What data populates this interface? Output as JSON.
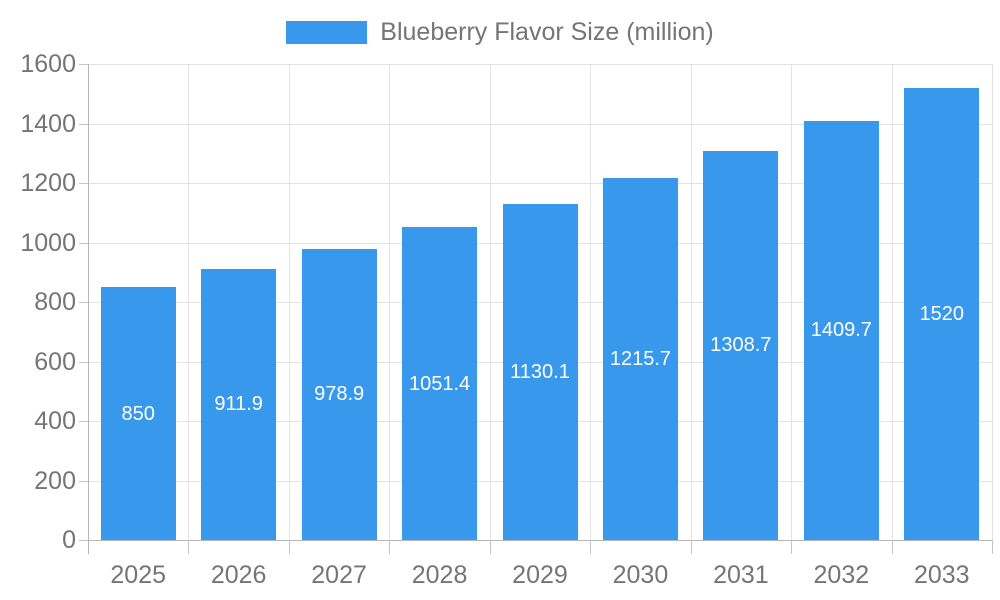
{
  "legend": {
    "label": "Blueberry Flavor Size (million)"
  },
  "colors": {
    "bar": "#3899EC",
    "axis_text": "#757575",
    "grid_line": "#E3E3E3",
    "axis_line": "#B5B5B5",
    "tick_line": "#C6C6C6",
    "bar_label": "#FFFFFF",
    "background": "#FFFFFF"
  },
  "chart_data": {
    "type": "bar",
    "title": "Blueberry Flavor Size (million)",
    "categories": [
      "2025",
      "2026",
      "2027",
      "2028",
      "2029",
      "2030",
      "2031",
      "2032",
      "2033"
    ],
    "values": [
      850,
      911.9,
      978.9,
      1051.4,
      1130.1,
      1215.7,
      1308.7,
      1409.7,
      1520
    ],
    "bar_labels": [
      "850",
      "911.9",
      "978.9",
      "1051.4",
      "1130.1",
      "1215.7",
      "1308.7",
      "1409.7",
      "1520"
    ],
    "xlabel": "",
    "ylabel": "",
    "ylim": [
      0,
      1600
    ],
    "yticks": [
      0,
      200,
      400,
      600,
      800,
      1000,
      1200,
      1400,
      1600
    ],
    "grid": true,
    "legend_position": "top",
    "series_name": "Blueberry Flavor Size (million)"
  }
}
